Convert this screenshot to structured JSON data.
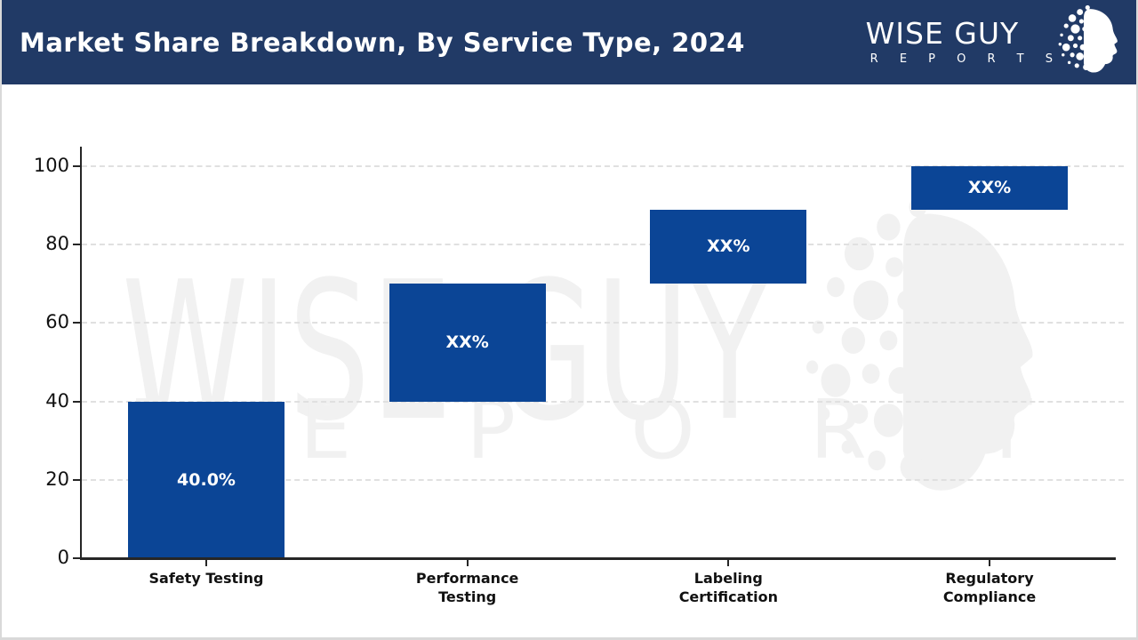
{
  "header": {
    "title": "Market Share Breakdown, By Service Type, 2024",
    "logo": {
      "line1": "WISE GUY",
      "line2": "R E P O R T S"
    }
  },
  "watermark": {
    "line1": "WISE GUY",
    "line2": "R E P O R T S"
  },
  "colors": {
    "header_bg": "#213a66",
    "bar": "#0b4596",
    "bar_label": "#ffffff",
    "grid": "#e0e0e0",
    "axis": "#262626",
    "watermark": "#f1f1f1",
    "frame_border": "#d9d9d9"
  },
  "chart_data": {
    "type": "bar",
    "subtype": "waterfall",
    "title": "Market Share Breakdown, By Service Type, 2024",
    "categories": [
      "Safety Testing",
      "Performance Testing",
      "Labeling Certification",
      "Regulatory Compliance"
    ],
    "bars": [
      {
        "category": "Safety Testing",
        "start": 0,
        "end": 40,
        "value": 40,
        "value_label": "40.0%"
      },
      {
        "category": "Performance Testing",
        "start": 40,
        "end": 70,
        "value": 30,
        "value_label": "XX%"
      },
      {
        "category": "Labeling Certification",
        "start": 70,
        "end": 89,
        "value": 19,
        "value_label": "XX%"
      },
      {
        "category": "Regulatory Compliance",
        "start": 89,
        "end": 100,
        "value": 11,
        "value_label": "XX%"
      }
    ],
    "ylim": [
      0,
      100
    ],
    "yticks": [
      0,
      20,
      40,
      60,
      80,
      100
    ],
    "xlabel": "",
    "ylabel": "",
    "grid": "horizontal-dashed",
    "legend": "none"
  }
}
